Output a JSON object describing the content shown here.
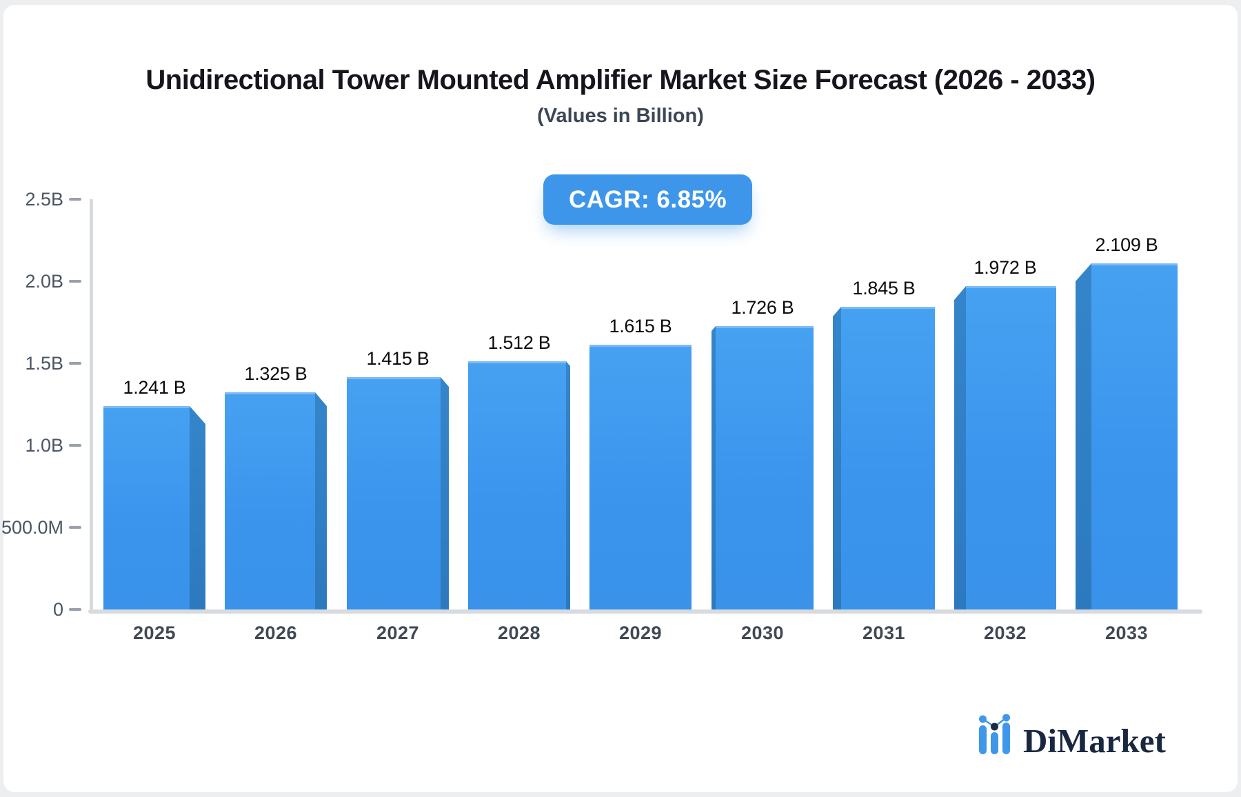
{
  "title": "Unidirectional Tower Mounted Amplifier Market Size Forecast (2026 - 2033)",
  "subtitle": "(Values in Billion)",
  "badge": {
    "label": "CAGR: 6.85%"
  },
  "chart_data": {
    "type": "bar",
    "title": "Unidirectional Tower Mounted Amplifier Market Size Forecast (2026 - 2033)",
    "subtitle": "(Values in Billion)",
    "cagr": "6.85%",
    "categories": [
      "2025",
      "2026",
      "2027",
      "2028",
      "2029",
      "2030",
      "2031",
      "2032",
      "2033"
    ],
    "values": [
      1.241,
      1.325,
      1.415,
      1.512,
      1.615,
      1.726,
      1.845,
      1.972,
      2.109
    ],
    "value_labels": [
      "1.241 B",
      "1.325 B",
      "1.415 B",
      "1.512 B",
      "1.615 B",
      "1.726 B",
      "1.845 B",
      "1.972 B",
      "2.109 B"
    ],
    "xlabel": "",
    "ylabel": "",
    "ylim": [
      0,
      2.5
    ],
    "ytick_values": [
      2.5,
      2.0,
      1.5,
      1.0,
      0.5,
      0
    ],
    "ytick_labels": [
      "2.5B",
      "2.0B",
      "1.5B",
      "1.0B",
      "500.0M",
      "0"
    ],
    "grid": false,
    "legend": false,
    "bar_face_color": "#3f9af0",
    "bar_side_color": "#2e7ec5",
    "style": "pseudo-3d bars, perspective vanishing toward center bar"
  },
  "colors": {
    "badge_background": "#3e96ea",
    "badge_text": "#ffffff",
    "axis": "#d7dade",
    "tick_label": "#4b5563",
    "title_text": "#15161d",
    "brand_navy": "#1a2740",
    "brand_blue": "#3f97ea"
  },
  "logo": {
    "text": "DiMarket"
  }
}
